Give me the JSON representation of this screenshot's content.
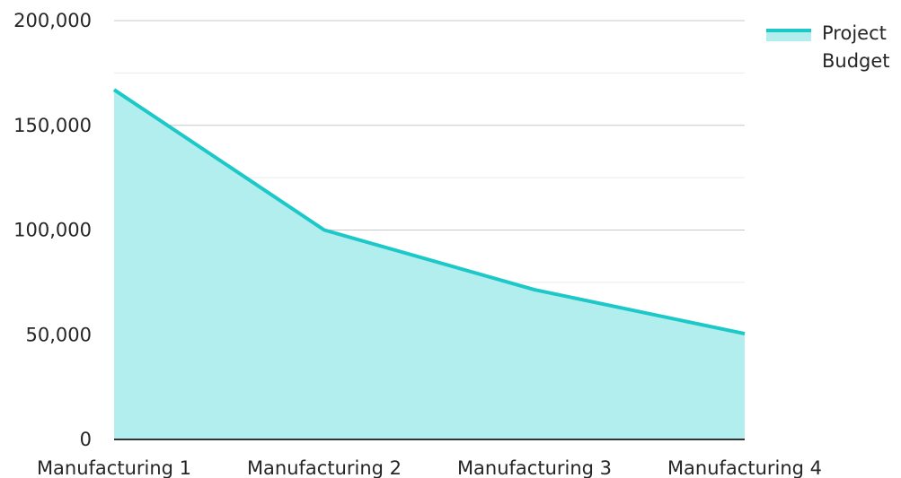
{
  "chart_data": {
    "type": "area",
    "title": "",
    "xlabel": "",
    "ylabel": "",
    "categories": [
      "Manufacturing 1",
      "Manufacturing 2",
      "Manufacturing 3",
      "Manufacturing 4"
    ],
    "series": [
      {
        "name": "Project Budget",
        "values": [
          167000,
          100000,
          71500,
          50500
        ]
      }
    ],
    "ylim": [
      0,
      200000
    ],
    "y_ticks": [
      "0",
      "50,000",
      "100,000",
      "150,000",
      "200,000"
    ],
    "y_tick_values": [
      0,
      50000,
      100000,
      150000,
      200000
    ],
    "y_minor_tick_values": [
      25000,
      75000,
      125000,
      175000
    ],
    "grid": true,
    "legend": {
      "position": "top-right",
      "label_lines": [
        "Project",
        "Budget"
      ]
    },
    "colors": {
      "line": "#1cc8c8",
      "fill": "#b3eeee"
    }
  }
}
